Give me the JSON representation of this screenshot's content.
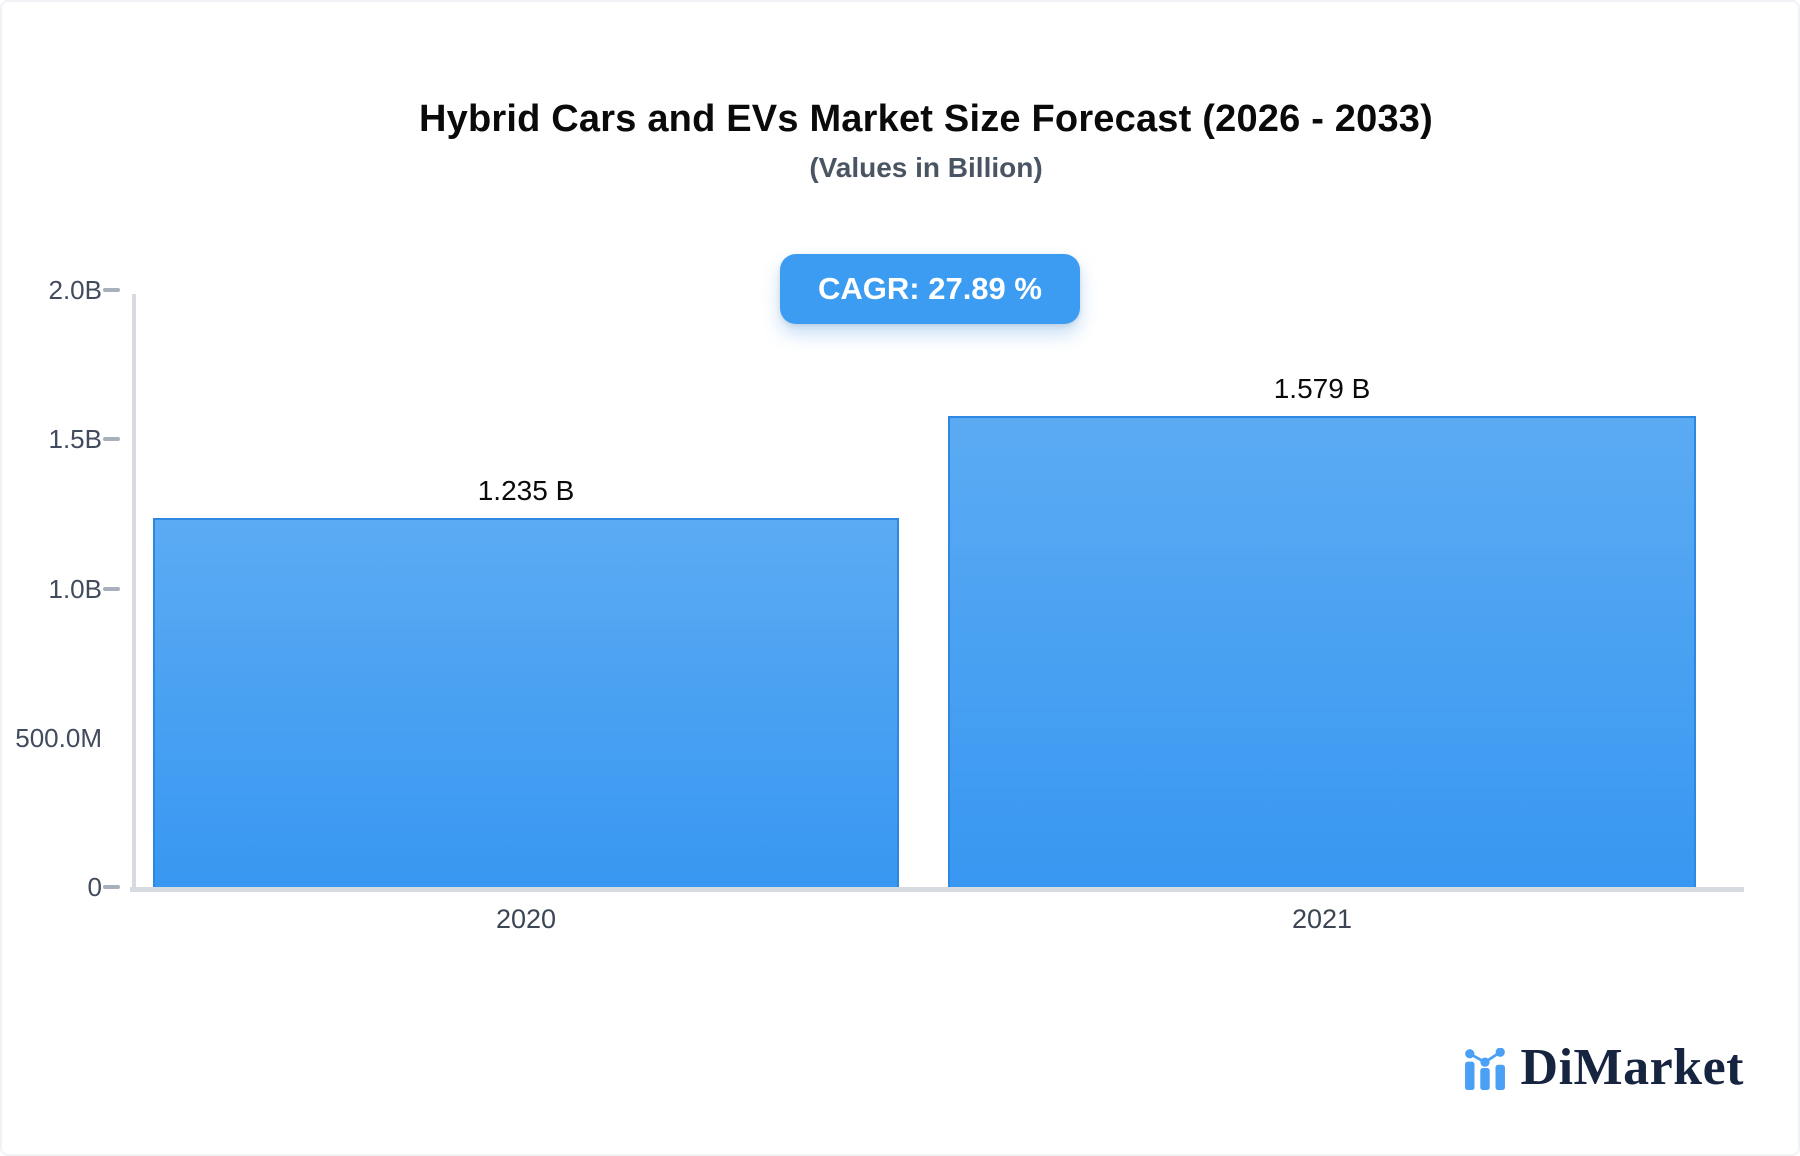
{
  "chart_data": {
    "type": "bar",
    "title": "Hybrid Cars and EVs Market Size Forecast (2026 - 2033)",
    "subtitle": "(Values in Billion)",
    "cagr_badge": "CAGR: 27.89 %",
    "categories": [
      "2020",
      "2021"
    ],
    "values": [
      1.235,
      1.579
    ],
    "value_labels": [
      "1.235 B",
      "1.579 B"
    ],
    "ylim": [
      0,
      2.0
    ],
    "y_ticks": [
      {
        "value": 2.0,
        "label": "2.0B",
        "dash": true
      },
      {
        "value": 1.5,
        "label": "1.5B",
        "dash": true
      },
      {
        "value": 1.0,
        "label": "1.0B",
        "dash": true
      },
      {
        "value": 0.5,
        "label": "500.0M",
        "dash": false
      },
      {
        "value": 0.0,
        "label": "0",
        "dash": true
      }
    ],
    "grid": false,
    "legend": false
  },
  "branding": {
    "logo_text": "DiMarket",
    "logo_icon": "bar-line-chart-icon"
  },
  "colors": {
    "title": "#0a0a0a",
    "subtitle": "#4a5564",
    "badge_bg": "#3b9cf1",
    "badge_text": "#ffffff",
    "axis_line": "#d7dae0",
    "tick_dash": "#a8b0be",
    "tick_label": "#414b5d",
    "x_label": "#3b4554",
    "value_label": "#0a0a0a",
    "bar_top": "#5babf3",
    "bar_bottom": "#3897f1",
    "bar_border": "#2e87e0",
    "logo_navy": "#162440",
    "logo_blue": "#4aa0f5"
  }
}
